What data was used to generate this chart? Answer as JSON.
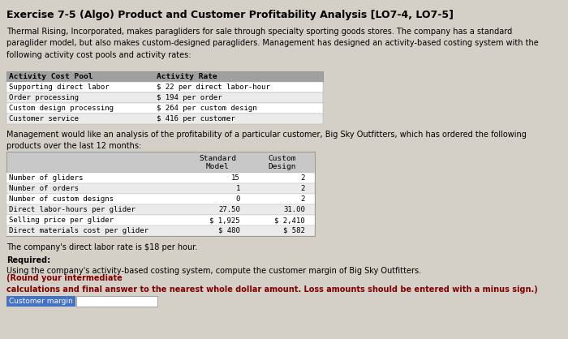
{
  "title": "Exercise 7-5 (Algo) Product and Customer Profitability Analysis [LO7-4, LO7-5]",
  "intro_text": "Thermal Rising, Incorporated, makes paragliders for sale through specialty sporting goods stores. The company has a standard\nparaglider model, but also makes custom-designed paragliders. Management has designed an activity-based costing system with the\nfollowing activity cost pools and activity rates:",
  "table1_headers": [
    "Activity Cost Pool",
    "Activity Rate"
  ],
  "table1_rows": [
    [
      "Supporting direct labor",
      "$ 22 per direct labor-hour"
    ],
    [
      "Order processing",
      "$ 194 per order"
    ],
    [
      "Custom design processing",
      "$ 264 per custom design"
    ],
    [
      "Customer service",
      "$ 416 per customer"
    ]
  ],
  "middle_text": "Management would like an analysis of the profitability of a particular customer, Big Sky Outfitters, which has ordered the following\nproducts over the last 12 months:",
  "table2_rows": [
    [
      "Number of gliders",
      "15",
      "2"
    ],
    [
      "Number of orders",
      "1",
      "2"
    ],
    [
      "Number of custom designs",
      "0",
      "2"
    ],
    [
      "Direct labor-hours per glider",
      "27.50",
      "31.00"
    ],
    [
      "Selling price per glider",
      "$ 1,925",
      "$ 2,410"
    ],
    [
      "Direct materials cost per glider",
      "$ 480",
      "$ 582"
    ]
  ],
  "footer_text1": "The company's direct labor rate is $18 per hour.",
  "footer_required": "Required:",
  "footer_normal": "Using the company's activity-based costing system, compute the customer margin of Big Sky Outfitters. ",
  "footer_bold": "(Round your intermediate\ncalculations and final answer to the nearest whole dollar amount. Loss amounts should be entered with a minus sign.)",
  "input_label": "Customer margin",
  "bg_color": "#d4d0c8",
  "table_header_bg": "#a0a0a0",
  "table_row_bg1": "#ffffff",
  "table_row_bg2": "#ebebeb",
  "table2_header_bg": "#c8c8c8",
  "input_bg": "#4472c4",
  "input_text_color": "#ffffff",
  "title_color": "#000000",
  "body_color": "#000000",
  "bold_color": "#7f0000"
}
